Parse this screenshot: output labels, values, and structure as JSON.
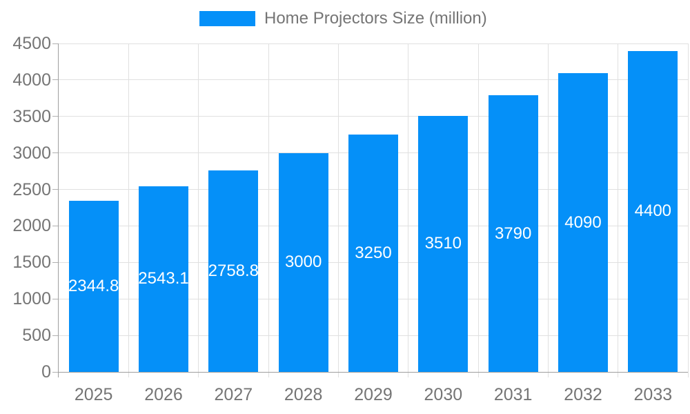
{
  "legend": {
    "label": "Home Projectors Size (million)"
  },
  "colors": {
    "bar": "#0590f8",
    "gridline": "#e0e0e0",
    "axis": "#9e9e9e",
    "y_tick": "#b0b0b0",
    "tick_text": "#757575",
    "value_text": "#ffffff"
  },
  "chart_data": {
    "type": "bar",
    "title": "Home Projectors Size (million)",
    "categories": [
      "2025",
      "2026",
      "2027",
      "2028",
      "2029",
      "2030",
      "2031",
      "2032",
      "2033"
    ],
    "values": [
      2344.8,
      2543.1,
      2758.8,
      3000,
      3250,
      3510,
      3790,
      4090,
      4400
    ],
    "value_labels": [
      "2344.8",
      "2543.1",
      "2758.8",
      "3000",
      "3250",
      "3510",
      "3790",
      "4090",
      "4400"
    ],
    "series": [
      {
        "name": "Home Projectors Size (million)",
        "values": [
          2344.8,
          2543.1,
          2758.8,
          3000,
          3250,
          3510,
          3790,
          4090,
          4400
        ]
      }
    ],
    "xlabel": "",
    "ylabel": "",
    "ylim": [
      0,
      4500
    ],
    "ytick_step": 500,
    "yticks": [
      0,
      500,
      1000,
      1500,
      2000,
      2500,
      3000,
      3500,
      4000,
      4500
    ],
    "grid": true,
    "legend_position": "top",
    "value_label_position": "inside-center"
  }
}
